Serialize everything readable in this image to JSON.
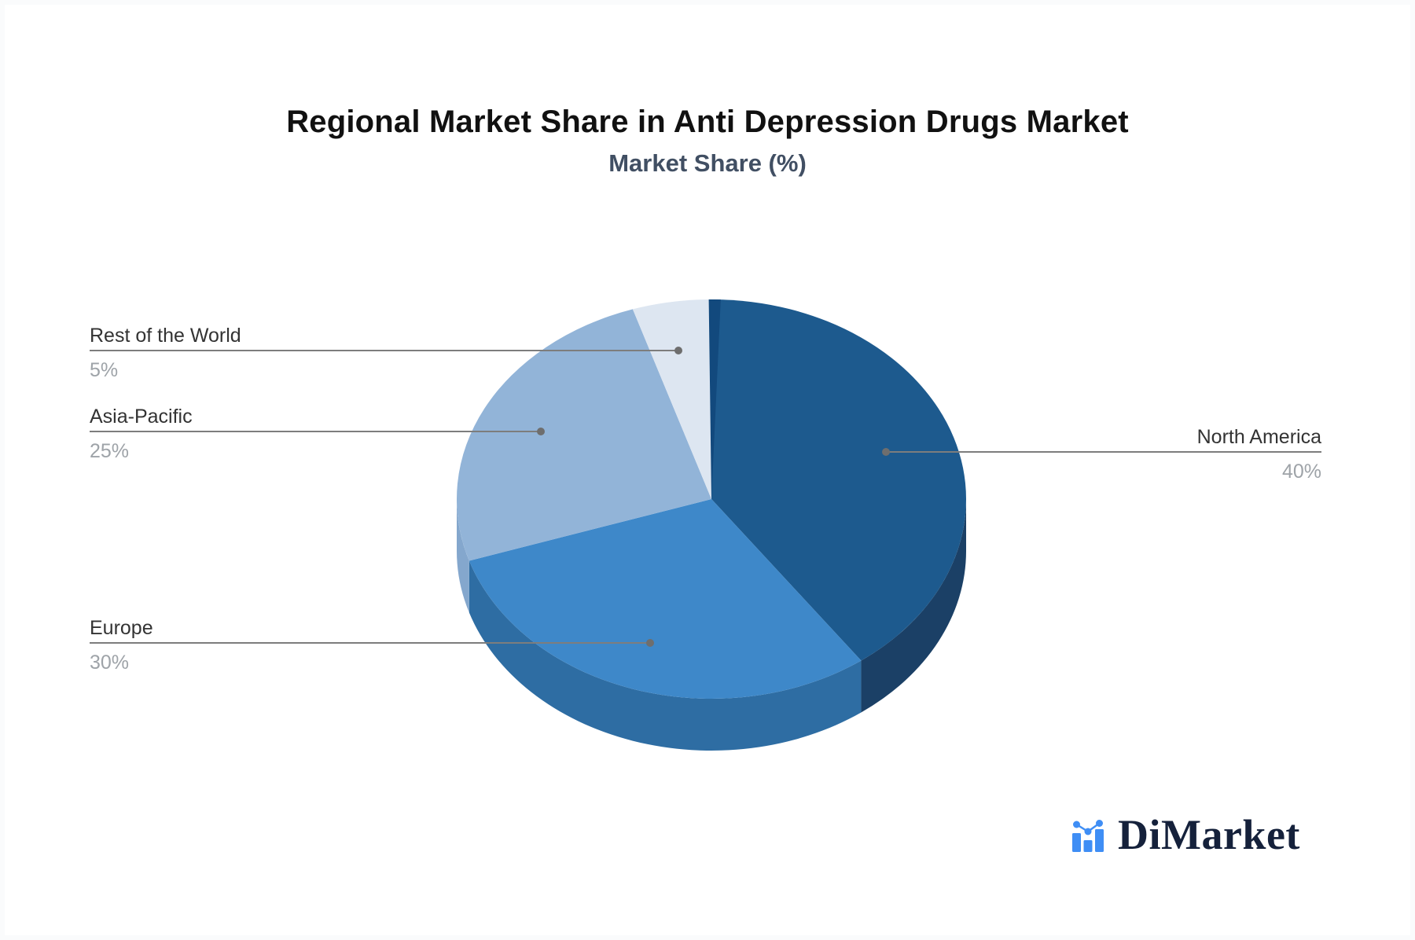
{
  "header": {
    "title": "Regional Market Share in Anti Depression Drugs Market",
    "subtitle": "Market Share (%)"
  },
  "chart_data": {
    "type": "pie",
    "style": "3d",
    "title": "Regional Market Share in Anti Depression Drugs Market",
    "subtitle": "Market Share (%)",
    "unit": "%",
    "direction": "clockwise",
    "start_angle": "12-o-clock",
    "legend_position": "callout-labels",
    "grid": false,
    "slices": [
      {
        "label": "North America",
        "value": 40,
        "value_text": "40%",
        "color": "#1D5A8E",
        "side_color": "#1B4066",
        "callout_side": "right"
      },
      {
        "label": "Europe",
        "value": 30,
        "value_text": "30%",
        "color": "#3E88C9",
        "side_color": "#2E6DA3",
        "callout_side": "left"
      },
      {
        "label": "Asia-Pacific",
        "value": 25,
        "value_text": "25%",
        "color": "#92B4D8",
        "side_color": "#84A7CD",
        "callout_side": "left"
      },
      {
        "label": "Rest of the World",
        "value": 5,
        "value_text": "5%",
        "color": "#DDE6F1",
        "side_color": "#C7D4E6",
        "callout_side": "left"
      }
    ],
    "edge_face_color": "#12497D",
    "callout_line_color": "#7D7D7D",
    "callout_label_color": "#333333",
    "callout_value_color": "#9EA3A8"
  },
  "branding": {
    "logo_text": "DiMarket",
    "logo_icon": "bar-chart-logo-icon",
    "logo_icon_color": "#3F8EF5",
    "logo_text_color": "#15213B"
  }
}
